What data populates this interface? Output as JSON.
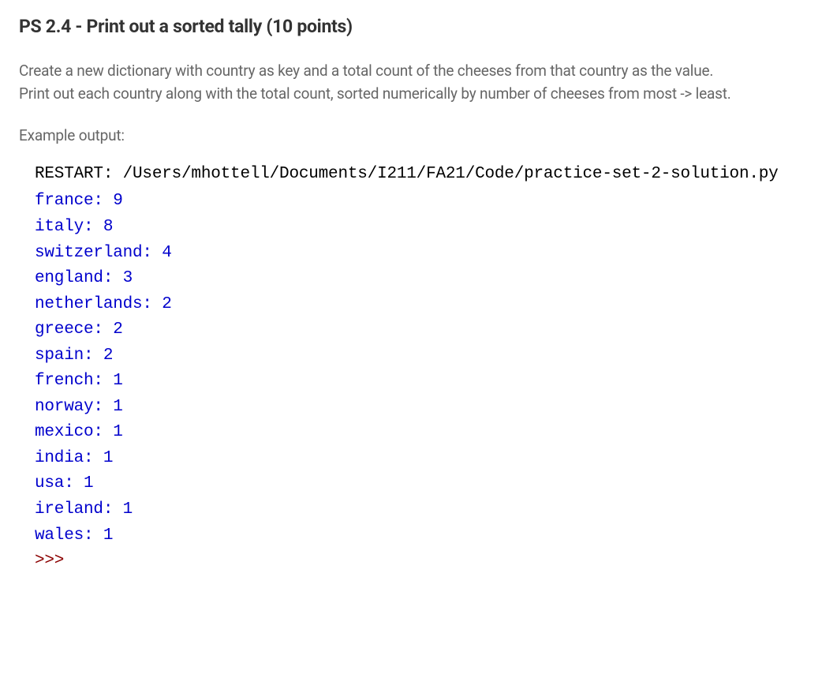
{
  "heading": "PS 2.4 - Print out a sorted tally (10 points)",
  "description": {
    "line1": "Create a new dictionary with country as key and a total count of the cheeses from that country as the value.",
    "line2": "Print out each country along with the total count, sorted numerically by number of cheeses from most -> least."
  },
  "example_label": "Example output:",
  "code": {
    "restart_line": " RESTART: /Users/mhottell/Documents/I211/FA21/Code/practice-set-2-solution.py ",
    "output_lines": [
      "france: 9",
      "italy: 8",
      "switzerland: 4",
      "england: 3",
      "netherlands: 2",
      "greece: 2",
      "spain: 2",
      "french: 1",
      "norway: 1",
      "mexico: 1",
      "india: 1",
      "usa: 1",
      "ireland: 1",
      "wales: 1"
    ],
    "prompt": ">>>"
  },
  "styling": {
    "heading_color": "#333333",
    "heading_fontsize": 23,
    "heading_weight": 700,
    "description_color": "#666666",
    "description_fontsize": 19,
    "code_fontsize": 21,
    "restart_color": "#000000",
    "output_color": "#0000cc",
    "prompt_color": "#8b0000",
    "background_color": "#ffffff",
    "code_font": "Monaco, Menlo, Consolas, Courier New, monospace",
    "body_font": "-apple-system, BlinkMacSystemFont, Segoe UI, Roboto, Helvetica Neue, Arial, sans-serif"
  }
}
